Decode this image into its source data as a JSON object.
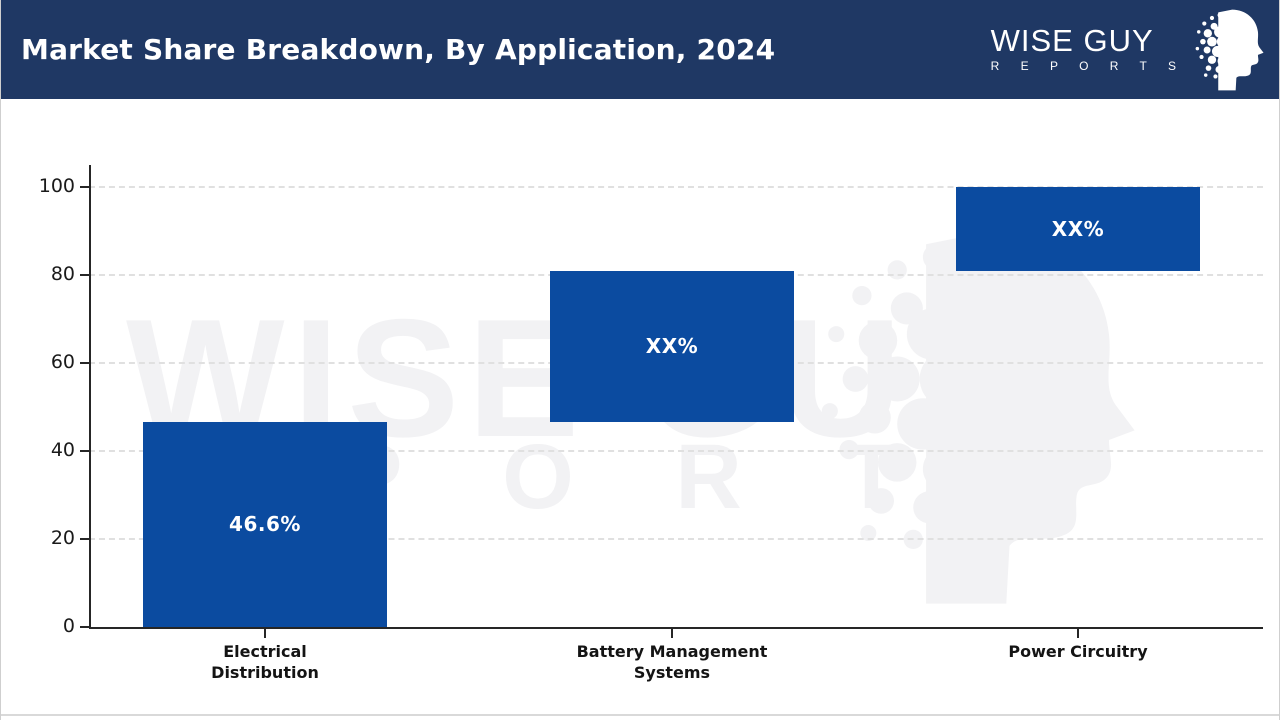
{
  "header": {
    "title": "Market Share Breakdown, By Application, 2024",
    "background_color": "#1F3864",
    "logo": {
      "line1": "WISE GUY",
      "line2": "R E P O R T S"
    }
  },
  "watermark": {
    "line1": "WISE GUY",
    "line2": "P O R T S"
  },
  "chart_data": {
    "type": "bar",
    "variant": "waterfall",
    "title": "Market Share Breakdown, By Application, 2024",
    "xlabel": "",
    "ylabel": "",
    "ylim": [
      0,
      100
    ],
    "yticks": [
      0,
      20,
      40,
      60,
      80,
      100
    ],
    "grid": {
      "horizontal": true,
      "style": "dashed"
    },
    "legend": "none",
    "categories": [
      "Electrical Distribution",
      "Battery Management Systems",
      "Power Circuitry"
    ],
    "category_label_lines": [
      [
        "Electrical",
        "Distribution"
      ],
      [
        "Battery Management",
        "Systems"
      ],
      [
        "Power Circuitry"
      ]
    ],
    "segments": [
      {
        "category": "Electrical Distribution",
        "start": 0,
        "end": 46.6,
        "value": 46.6,
        "label": "46.6%"
      },
      {
        "category": "Battery Management Systems",
        "start": 46.6,
        "end": 81,
        "value": 34.4,
        "label": "XX%"
      },
      {
        "category": "Power Circuitry",
        "start": 81,
        "end": 100,
        "value": 19,
        "label": "XX%"
      }
    ],
    "colors": {
      "bar": "#0B4BA0",
      "bar_label": "#FFFFFF",
      "axis": "#262626",
      "gridline": "#E0E0E0",
      "tick_label": "#1A1A1A",
      "header_navy": "#1F3864",
      "watermark": "#F2F2F4"
    }
  }
}
